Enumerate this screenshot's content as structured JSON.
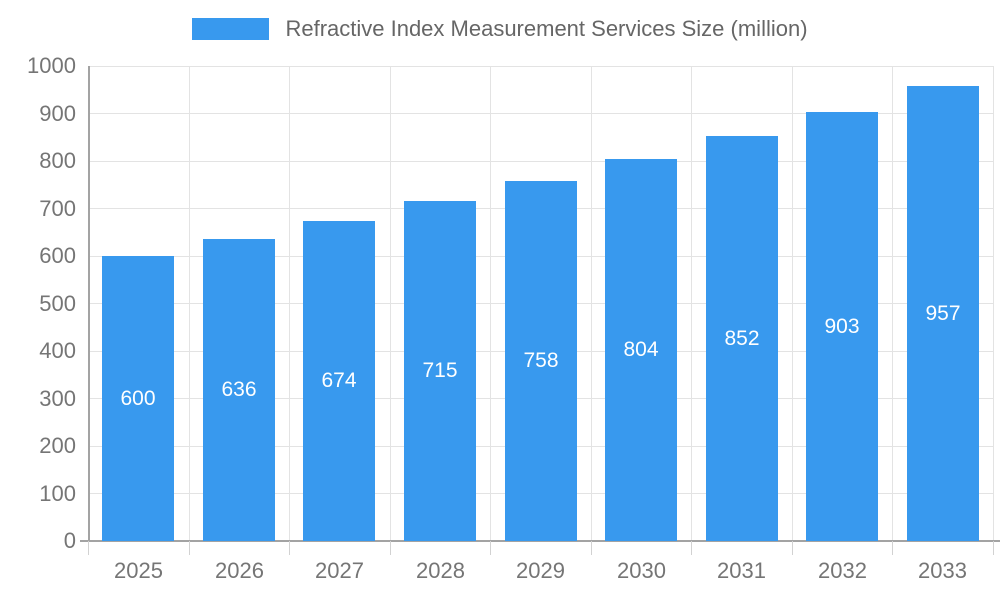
{
  "chart_data": {
    "type": "bar",
    "title": "Refractive Index Measurement Services Size (million)",
    "categories": [
      "2025",
      "2026",
      "2027",
      "2028",
      "2029",
      "2030",
      "2031",
      "2032",
      "2033"
    ],
    "values": [
      600,
      636,
      674,
      715,
      758,
      804,
      852,
      903,
      957
    ],
    "xlabel": "",
    "ylabel": "",
    "ylim": [
      0,
      1000
    ],
    "yticks": [
      0,
      100,
      200,
      300,
      400,
      500,
      600,
      700,
      800,
      900,
      1000
    ],
    "grid": true,
    "legend_position": "top",
    "colors": {
      "bar": "#3899ee",
      "bar_label": "#ffffff",
      "grid": "#e3e3e3",
      "axis": "#a3a3a3",
      "tick": "#d2d2d2",
      "axis_text": "#757575",
      "legend_text": "#666666",
      "background": "#ffffff"
    }
  }
}
